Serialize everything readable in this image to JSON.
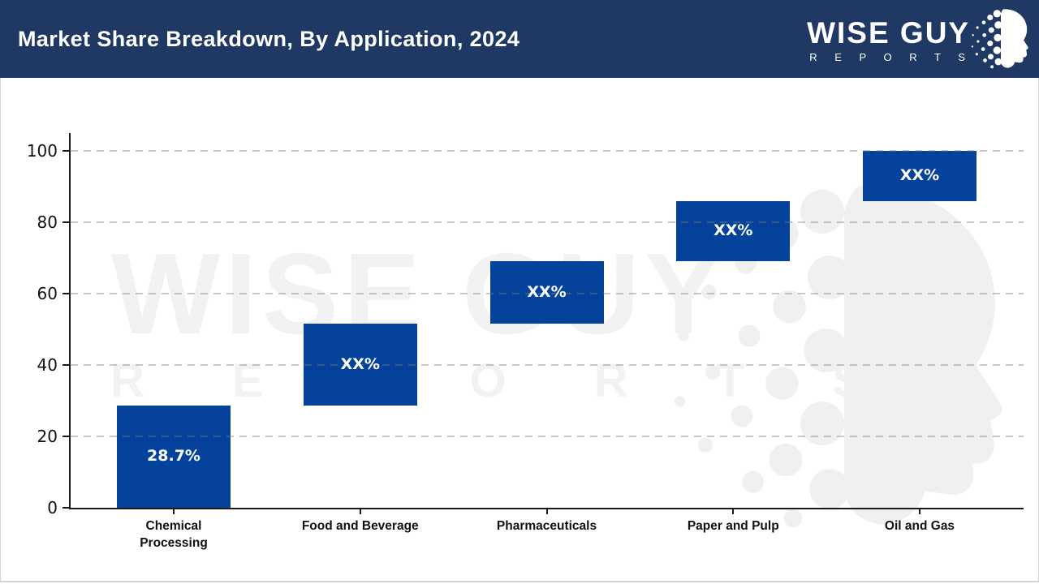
{
  "header": {
    "title": "Market Share Breakdown, By Application, 2024",
    "bg_color": "#1f3864",
    "logo": {
      "line1": "WISE GUY",
      "line2": "R E P O R T S"
    }
  },
  "watermark": {
    "line1": "WISE GUY",
    "line2": "R E P O R T S"
  },
  "chart_data": {
    "type": "bar",
    "subtype": "waterfall",
    "title": "Market Share Breakdown, By Application, 2024",
    "categories": [
      "Chemical Processing",
      "Food and Beverage",
      "Pharmaceuticals",
      "Paper and Pulp",
      "Oil and Gas"
    ],
    "segments": [
      {
        "category": "Chemical Processing",
        "tick_label": "Chemical\nProcessing",
        "start": 0,
        "end": 28.7,
        "value_label": "28.7%"
      },
      {
        "category": "Food and Beverage",
        "tick_label": "Food and Beverage",
        "start": 28.7,
        "end": 51.5,
        "value_label": "XX%"
      },
      {
        "category": "Pharmaceuticals",
        "tick_label": "Pharmaceuticals",
        "start": 51.5,
        "end": 69,
        "value_label": "XX%"
      },
      {
        "category": "Paper and Pulp",
        "tick_label": "Paper and Pulp",
        "start": 69,
        "end": 86,
        "value_label": "XX%"
      },
      {
        "category": "Oil and Gas",
        "tick_label": "Oil and Gas",
        "start": 86,
        "end": 100,
        "value_label": "XX%"
      }
    ],
    "y_ticks": [
      0,
      20,
      40,
      60,
      80,
      100
    ],
    "ylim": [
      0,
      105
    ],
    "xlabel": "",
    "ylabel": "",
    "grid": "horizontal-dashed",
    "legend": "none",
    "bar_color": "#04429b",
    "bar_label_color": "#ffffff",
    "axis_color": "#1a1a1a"
  }
}
